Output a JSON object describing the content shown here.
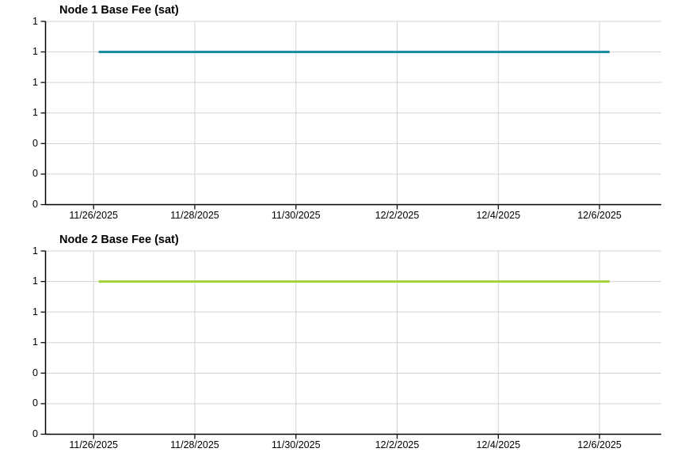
{
  "page": {
    "background": "#ffffff"
  },
  "colors": {
    "grid": "#d3d3d3",
    "axis": "#000000",
    "text": "#000000",
    "node1_line": "#1a8a9b",
    "node2_line": "#a3d23a"
  },
  "chart_data": [
    {
      "type": "line",
      "title": "Node 1 Base Fee (sat)",
      "legend": "none",
      "grid": true,
      "series": [
        {
          "name": "Node 1 base fee",
          "color": "#1a8a9b",
          "line_width": 3,
          "points": [
            {
              "day": 0.1,
              "value": 1
            },
            {
              "day": 10.2,
              "value": 1
            }
          ]
        }
      ],
      "xaxis": {
        "day_zero_date": "11/26/2025",
        "domain_days": [
          -0.95,
          11.22
        ],
        "ticks": [
          {
            "day": 0,
            "label": "11/26/2025"
          },
          {
            "day": 2,
            "label": "11/28/2025"
          },
          {
            "day": 4,
            "label": "11/30/2025"
          },
          {
            "day": 6,
            "label": "12/2/2025"
          },
          {
            "day": 8,
            "label": "12/4/2025"
          },
          {
            "day": 10,
            "label": "12/6/2025"
          }
        ]
      },
      "yaxis": {
        "domain": [
          0,
          1.2
        ],
        "ticks": [
          {
            "value": 1.2,
            "label": "1"
          },
          {
            "value": 1.0,
            "label": "1"
          },
          {
            "value": 0.8,
            "label": "1"
          },
          {
            "value": 0.6,
            "label": "1"
          },
          {
            "value": 0.4,
            "label": "0"
          },
          {
            "value": 0.2,
            "label": "0"
          },
          {
            "value": 0.0,
            "label": "0"
          }
        ]
      }
    },
    {
      "type": "line",
      "title": "Node 2 Base Fee (sat)",
      "legend": "none",
      "grid": true,
      "series": [
        {
          "name": "Node 2 base fee",
          "color": "#a3d23a",
          "line_width": 3,
          "points": [
            {
              "day": 0.1,
              "value": 1
            },
            {
              "day": 10.2,
              "value": 1
            }
          ]
        }
      ],
      "xaxis": {
        "day_zero_date": "11/26/2025",
        "domain_days": [
          -0.95,
          11.22
        ],
        "ticks": [
          {
            "day": 0,
            "label": "11/26/2025"
          },
          {
            "day": 2,
            "label": "11/28/2025"
          },
          {
            "day": 4,
            "label": "11/30/2025"
          },
          {
            "day": 6,
            "label": "12/2/2025"
          },
          {
            "day": 8,
            "label": "12/4/2025"
          },
          {
            "day": 10,
            "label": "12/6/2025"
          }
        ]
      },
      "yaxis": {
        "domain": [
          0,
          1.2
        ],
        "ticks": [
          {
            "value": 1.2,
            "label": "1"
          },
          {
            "value": 1.0,
            "label": "1"
          },
          {
            "value": 0.8,
            "label": "1"
          },
          {
            "value": 0.6,
            "label": "1"
          },
          {
            "value": 0.4,
            "label": "0"
          },
          {
            "value": 0.2,
            "label": "0"
          },
          {
            "value": 0.0,
            "label": "0"
          }
        ]
      }
    }
  ]
}
